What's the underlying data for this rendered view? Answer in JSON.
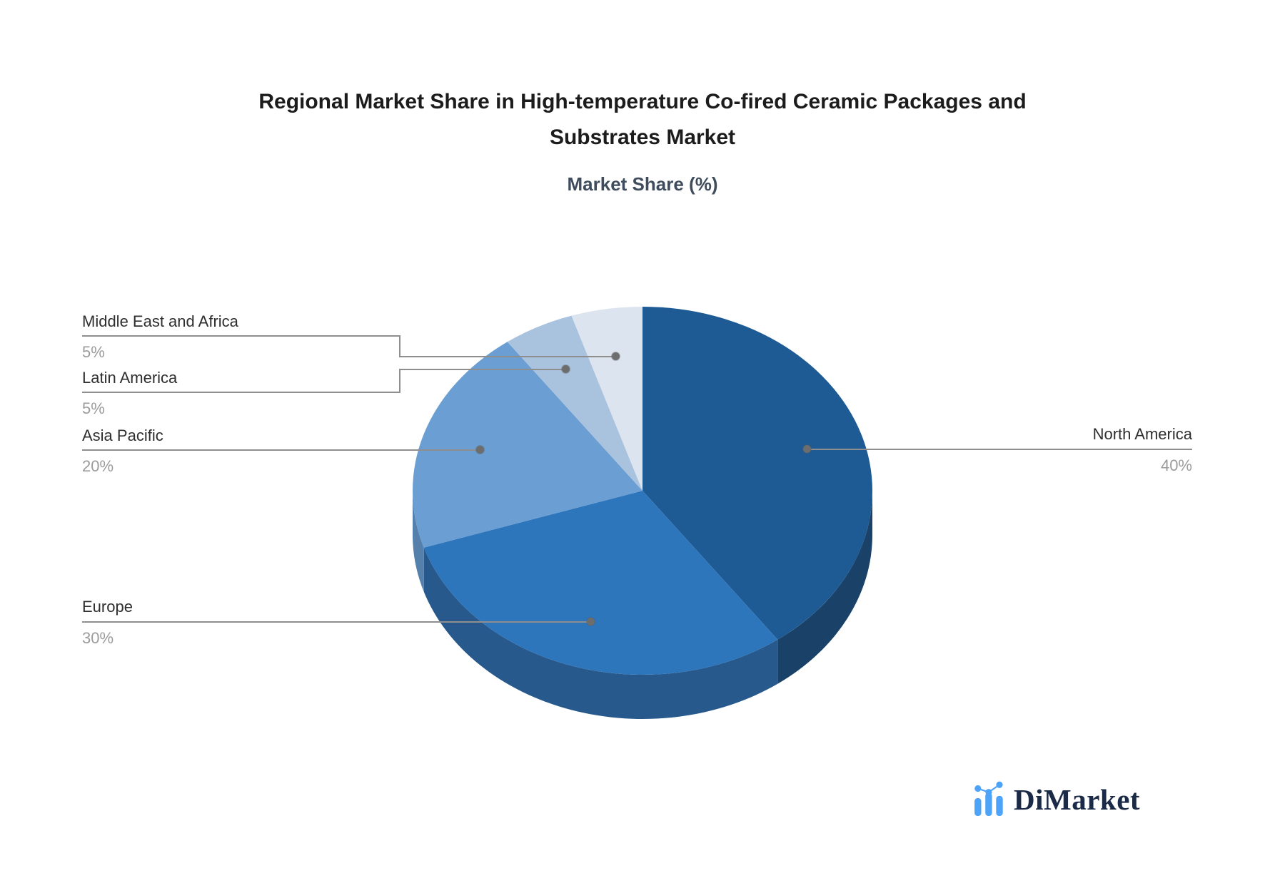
{
  "header": {
    "title_line1": "Regional Market Share in High-temperature Co-fired Ceramic Packages and",
    "title_line2": "Substrates Market",
    "subtitle": "Market Share (%)"
  },
  "chart_data": {
    "type": "pie",
    "style": "3d",
    "title": "Regional Market Share in High-temperature Co-fired Ceramic Packages and Substrates Market",
    "subtitle": "Market Share (%)",
    "unit": "%",
    "start_angle_deg": 0,
    "direction": "clockwise",
    "legend_position": "leader-lines",
    "leader_line_color": "#8e8e8e",
    "leader_dot_color": "#6d6d6d",
    "label_color": "#2e2e2e",
    "value_color": "#9b9b9b",
    "segments": [
      {
        "label": "North America",
        "value": 40,
        "display": "40%",
        "color": "#1E5B94",
        "side_color": "#1A4168"
      },
      {
        "label": "Europe",
        "value": 30,
        "display": "30%",
        "color": "#2E76BC",
        "side_color": "#27598C"
      },
      {
        "label": "Asia Pacific",
        "value": 20,
        "display": "20%",
        "color": "#6B9ED2",
        "side_color": "#5580AB"
      },
      {
        "label": "Latin America",
        "value": 5,
        "display": "5%",
        "color": "#A9C3DF",
        "side_color": "#8FA9C4"
      },
      {
        "label": "Middle East and Africa",
        "value": 5,
        "display": "5%",
        "color": "#DCE4EF",
        "side_color": "#B9C5D6"
      }
    ]
  },
  "branding": {
    "name": "DiMarket",
    "icon": "bar-line-chart-icon",
    "text_color": "#1b2a47",
    "accent_color": "#4DA3F7"
  }
}
